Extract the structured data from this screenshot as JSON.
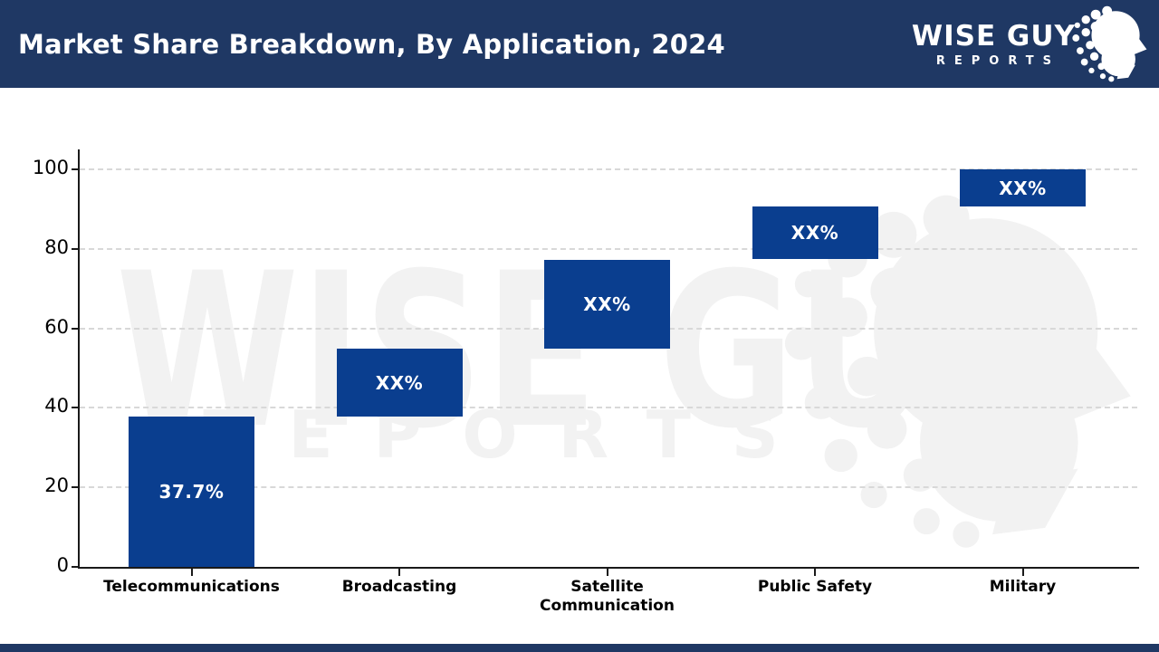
{
  "header": {
    "title": "Market Share Breakdown, By Application, 2024",
    "logo_line1": "WISE GUY",
    "logo_line2": "REPORTS"
  },
  "watermark": {
    "line1": "WISE GUY",
    "line2": "REPORTS"
  },
  "icons": {
    "logo_face": "dotted-head-profile-icon",
    "watermark_face": "dotted-head-profile-watermark"
  },
  "colors": {
    "header_bg": "#1f3864",
    "footer_bg": "#1f3864",
    "bar": "#0a3e8f",
    "bar_label_text": "#ffffff",
    "grid": "#d8d8d8",
    "axis": "#1a1a1a",
    "tick_text": "#000000",
    "watermark": "#f2f2f2",
    "title_text": "#ffffff"
  },
  "chart_data": {
    "type": "bar",
    "variant": "waterfall",
    "title": "Market Share Breakdown, By Application, 2024",
    "xlabel": "",
    "ylabel": "",
    "categories": [
      "Telecommunications",
      "Broadcasting",
      "Satellite\nCommunication",
      "Public Safety",
      "Military"
    ],
    "segments": [
      {
        "category": "Telecommunications",
        "start": 0,
        "end": 37.7,
        "label": "37.7%"
      },
      {
        "category": "Broadcasting",
        "start": 37.7,
        "end": 55.0,
        "label": "XX%"
      },
      {
        "category": "Satellite\nCommunication",
        "start": 55.0,
        "end": 77.3,
        "label": "XX%"
      },
      {
        "category": "Public Safety",
        "start": 77.4,
        "end": 90.6,
        "label": "XX%"
      },
      {
        "category": "Military",
        "start": 90.6,
        "end": 100.0,
        "label": "XX%"
      }
    ],
    "y_ticks": [
      0,
      20,
      40,
      60,
      80,
      100
    ],
    "ylim": [
      0,
      105
    ],
    "grid": "horizontal-dashed",
    "legend": "none"
  }
}
